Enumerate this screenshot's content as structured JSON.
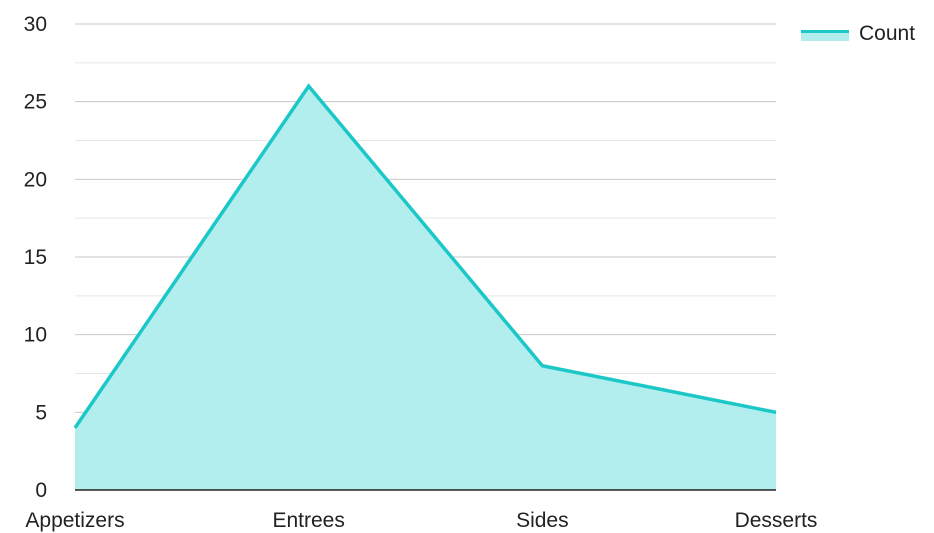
{
  "chart_data": {
    "type": "area",
    "categories": [
      "Appetizers",
      "Entrees",
      "Sides",
      "Desserts"
    ],
    "series": [
      {
        "name": "Count",
        "values": [
          4,
          26,
          8,
          5
        ]
      }
    ],
    "title": "",
    "xlabel": "",
    "ylabel": "",
    "ylim": [
      0,
      30
    ],
    "yticks": [
      "0",
      "5",
      "10",
      "15",
      "20",
      "25",
      "30"
    ],
    "grid": true,
    "legend_position": "top-right"
  },
  "colors": {
    "line": "#1cc7c8",
    "fill": "#b2eeee",
    "grid": "#c8c8c8",
    "grid_minor": "#e6e6e6",
    "axis": "#222222"
  }
}
